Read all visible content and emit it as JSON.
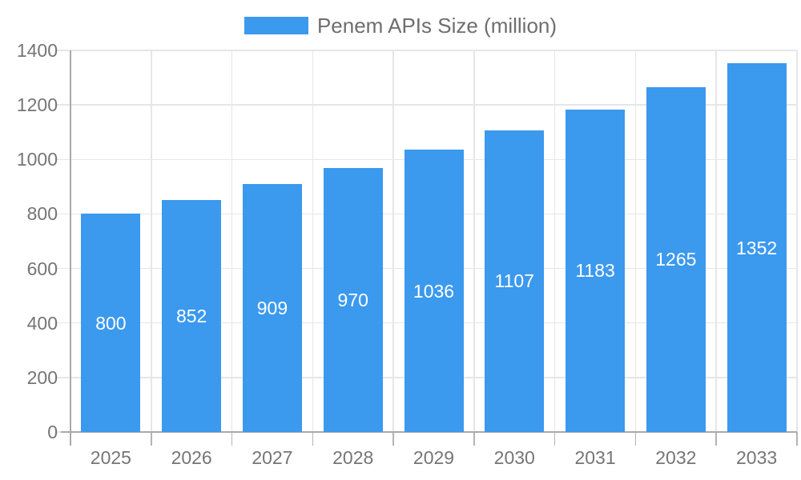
{
  "chart_data": {
    "type": "bar",
    "legend_label": "Penem APIs Size (million)",
    "categories": [
      "2025",
      "2026",
      "2027",
      "2028",
      "2029",
      "2030",
      "2031",
      "2032",
      "2033"
    ],
    "values": [
      800,
      852,
      909,
      970,
      1036,
      1107,
      1183,
      1265,
      1352
    ],
    "xlabel": "",
    "ylabel": "",
    "ylim": [
      0,
      1400
    ],
    "yticks": [
      0,
      200,
      400,
      600,
      800,
      1000,
      1200,
      1400
    ],
    "grid": true,
    "legend_position": "top",
    "value_label_position": "inside-center"
  },
  "colors": {
    "background": "#ffffff",
    "bar": "#3b99ee",
    "grid": "#e6e6e6",
    "axis": "#a9a9a9",
    "x_tick": "#b4b4b4",
    "tick_label": "#757575",
    "legend_label": "#6e6e6e",
    "value_label": "#ffffff"
  }
}
